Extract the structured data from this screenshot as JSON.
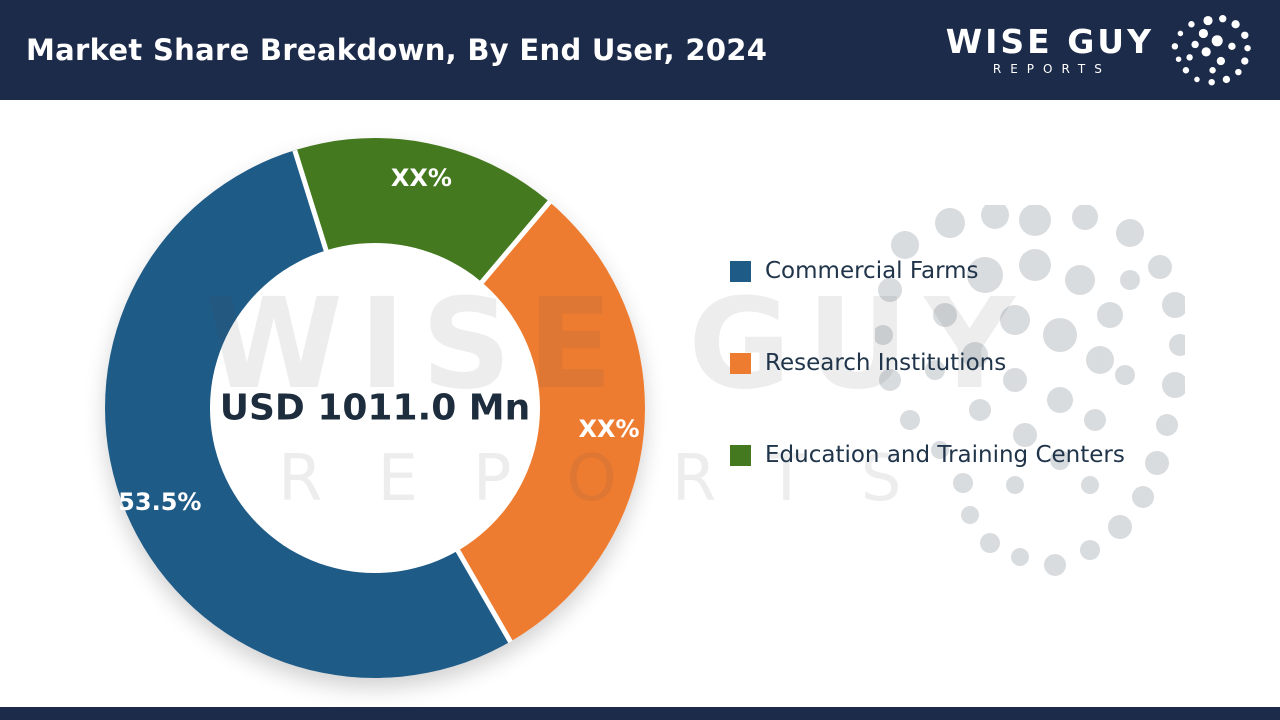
{
  "header": {
    "title": "Market Share Breakdown, By End User, 2024",
    "logo": {
      "line1": "WISE GUY",
      "line2": "REPORTS"
    }
  },
  "watermark": {
    "line1": "WISE GUY",
    "line2": "REPORTS"
  },
  "chart_data": {
    "type": "donut",
    "title": "Market Share Breakdown, By End User, 2024",
    "center_label": "USD 1011.0 Mn",
    "start_angle_deg": 150,
    "hole_ratio": 0.61,
    "legend_position": "right",
    "segments": [
      {
        "name": "Commercial Farms",
        "label": "53.5%",
        "value": 53.5,
        "color": "#1f5b87"
      },
      {
        "name": "Education and Training Centers",
        "label": "XX%",
        "value": 16.0,
        "color": "#44791f"
      },
      {
        "name": "Research Institutions",
        "label": "XX%",
        "value": 30.5,
        "color": "#ee7c30"
      }
    ],
    "legend": [
      {
        "name": "Commercial Farms",
        "color": "#1f5b87"
      },
      {
        "name": "Research Institutions",
        "color": "#ee7c30"
      },
      {
        "name": "Education and Training Centers",
        "color": "#44791f"
      }
    ],
    "colors": {
      "accent_navy": "#1d2b4a"
    }
  }
}
